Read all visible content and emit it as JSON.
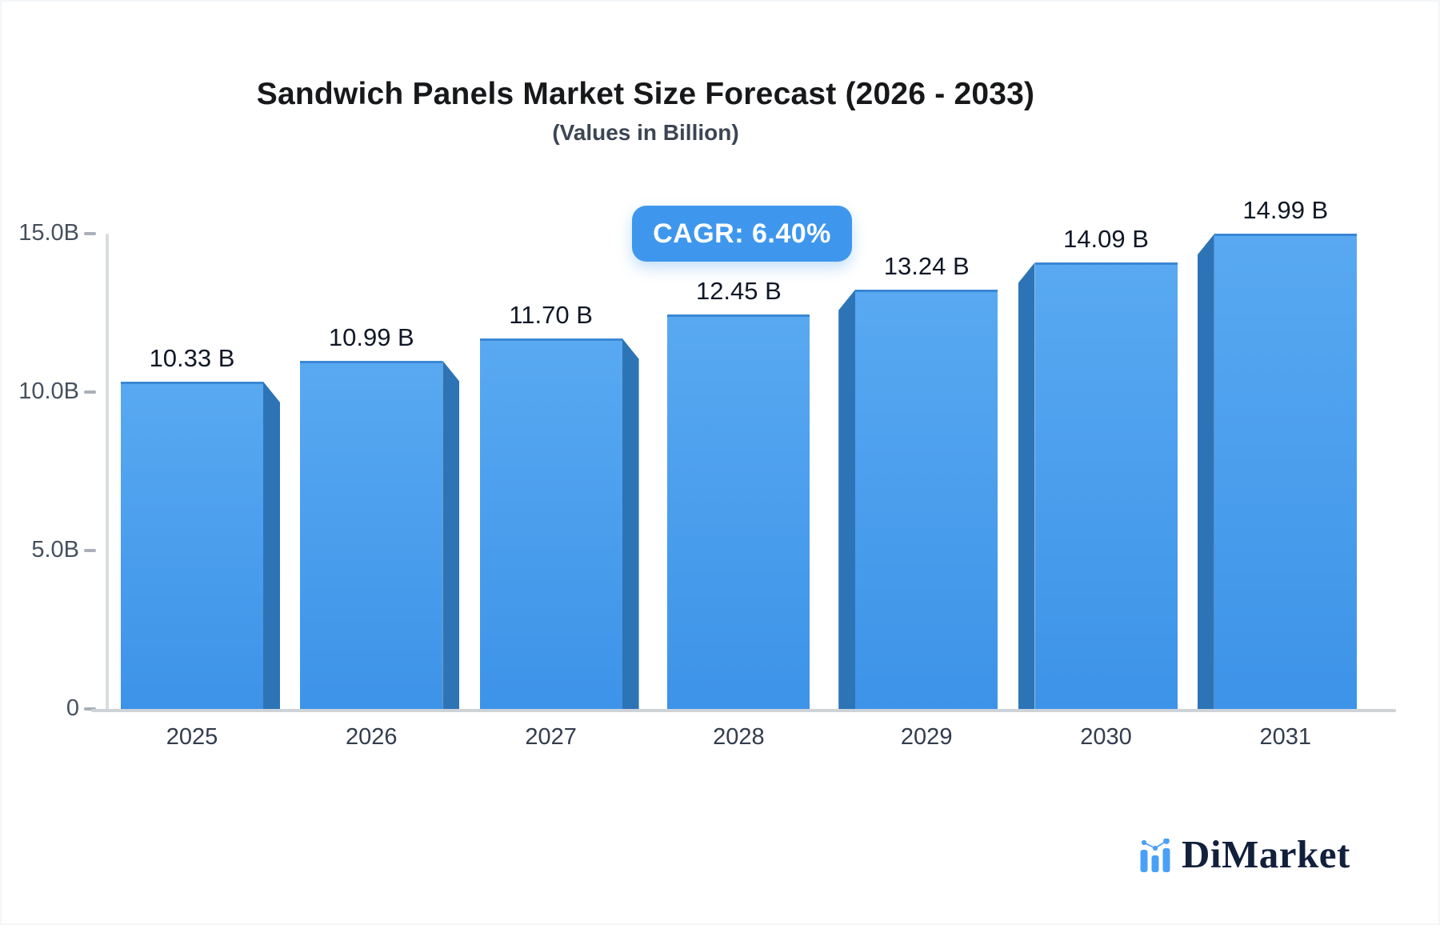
{
  "chart_data": {
    "type": "bar",
    "title": "Sandwich Panels Market Size Forecast (2026 - 2033)",
    "subtitle": "(Values in Billion)",
    "badge_label": "CAGR: 6.40%",
    "categories": [
      "2025",
      "2026",
      "2027",
      "2028",
      "2029",
      "2030",
      "2031"
    ],
    "values": [
      10.33,
      10.99,
      11.7,
      12.45,
      13.24,
      14.09,
      14.99
    ],
    "value_labels": [
      "10.33 B",
      "10.99 B",
      "11.70 B",
      "12.45 B",
      "13.24 B",
      "14.09 B",
      "14.99 B"
    ],
    "y_ticks": [
      {
        "label": "0",
        "value": 0
      },
      {
        "label": "5.0B",
        "value": 5
      },
      {
        "label": "10.0B",
        "value": 10
      },
      {
        "label": "15.0B",
        "value": 15
      }
    ],
    "ylim": [
      0,
      15
    ],
    "grid": false,
    "legend": false,
    "bar_sides": [
      "right",
      "right",
      "right",
      "none",
      "left",
      "left",
      "left"
    ],
    "colors": {
      "bar_top": "#58a9f1",
      "bar_bottom": "#3d93e8",
      "bar_side": "#2d74b6",
      "bar_top_edge": "#3a87d3",
      "badge_bg": "#3f97ed",
      "badge_text": "#ffffff",
      "axis_line": "#d9dde1",
      "baseline": "#ced3d8",
      "tick": "#a9b0b8"
    }
  },
  "brand": {
    "name": "DiMarket"
  }
}
